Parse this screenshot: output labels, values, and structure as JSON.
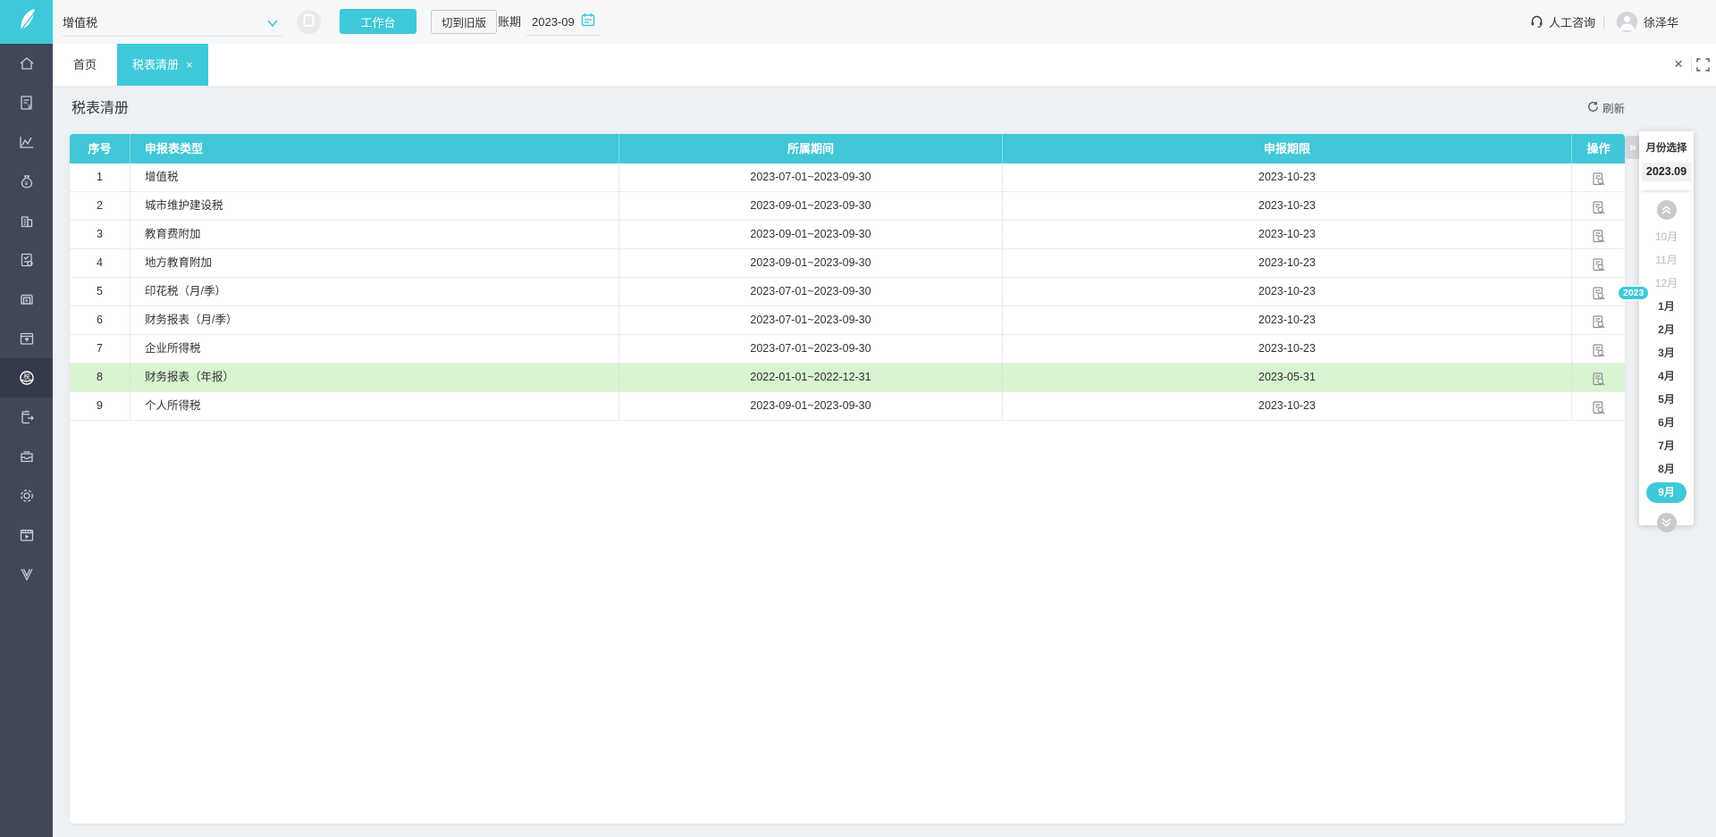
{
  "colors": {
    "accent": "#3ec9d8",
    "sidebar_bg": "#424757",
    "table_header": "#41c7d7",
    "row_highlight": "#d9f4d0",
    "content_bg": "#edf0f4"
  },
  "topbar": {
    "tax_type_value": "增值税",
    "workbench_button": "工作台",
    "switch_old_button": "切到旧版",
    "period_label": "账期",
    "period_value": "2023-09",
    "support_label": "人工咨询",
    "username": "徐泽华"
  },
  "tabs": [
    {
      "label": "首页",
      "active": false
    },
    {
      "label": "税表清册",
      "active": true,
      "close_glyph": "×"
    }
  ],
  "window_controls": {
    "close_glyph": "×"
  },
  "sidebar": {
    "active_index": 8,
    "items": [
      {
        "name": "home"
      },
      {
        "name": "billing-invoice"
      },
      {
        "name": "reports-chart"
      },
      {
        "name": "funds-moneybag"
      },
      {
        "name": "company-building"
      },
      {
        "name": "financial-report"
      },
      {
        "name": "invoice-voucher"
      },
      {
        "name": "tax-bureau-window"
      },
      {
        "name": "tax-declaration"
      },
      {
        "name": "ledger-export"
      },
      {
        "name": "document-archive"
      },
      {
        "name": "settings-gear"
      },
      {
        "name": "video-guide"
      },
      {
        "name": "v-logo"
      }
    ]
  },
  "page": {
    "title": "税表清册",
    "refresh_label": "刷新"
  },
  "table": {
    "columns": [
      "序号",
      "申报表类型",
      "所属期间",
      "申报期限",
      "操作"
    ],
    "rows": [
      {
        "no": "1",
        "type": "增值税",
        "period": "2023-07-01~2023-09-30",
        "deadline": "2023-10-23",
        "highlight": false
      },
      {
        "no": "2",
        "type": "城市维护建设税",
        "period": "2023-09-01~2023-09-30",
        "deadline": "2023-10-23",
        "highlight": false
      },
      {
        "no": "3",
        "type": "教育费附加",
        "period": "2023-09-01~2023-09-30",
        "deadline": "2023-10-23",
        "highlight": false
      },
      {
        "no": "4",
        "type": "地方教育附加",
        "period": "2023-09-01~2023-09-30",
        "deadline": "2023-10-23",
        "highlight": false
      },
      {
        "no": "5",
        "type": "印花税（月/季）",
        "period": "2023-07-01~2023-09-30",
        "deadline": "2023-10-23",
        "highlight": false
      },
      {
        "no": "6",
        "type": "财务报表（月/季）",
        "period": "2023-07-01~2023-09-30",
        "deadline": "2023-10-23",
        "highlight": false
      },
      {
        "no": "7",
        "type": "企业所得税",
        "period": "2023-07-01~2023-09-30",
        "deadline": "2023-10-23",
        "highlight": false
      },
      {
        "no": "8",
        "type": "财务报表（年报）",
        "period": "2022-01-01~2022-12-31",
        "deadline": "2023-05-31",
        "highlight": true
      },
      {
        "no": "9",
        "type": "个人所得税",
        "period": "2023-09-01~2023-09-30",
        "deadline": "2023-10-23",
        "highlight": false
      }
    ]
  },
  "month_panel": {
    "title": "月份选择",
    "current": "2023.09",
    "collapse_glyph": "»",
    "months": [
      {
        "label": "10月",
        "muted": true
      },
      {
        "label": "11月",
        "muted": true
      },
      {
        "label": "12月",
        "muted": true
      },
      {
        "label": "1月",
        "year_badge": "2023"
      },
      {
        "label": "2月"
      },
      {
        "label": "3月"
      },
      {
        "label": "4月"
      },
      {
        "label": "5月"
      },
      {
        "label": "6月"
      },
      {
        "label": "7月"
      },
      {
        "label": "8月"
      },
      {
        "label": "9月",
        "selected": true
      }
    ]
  }
}
